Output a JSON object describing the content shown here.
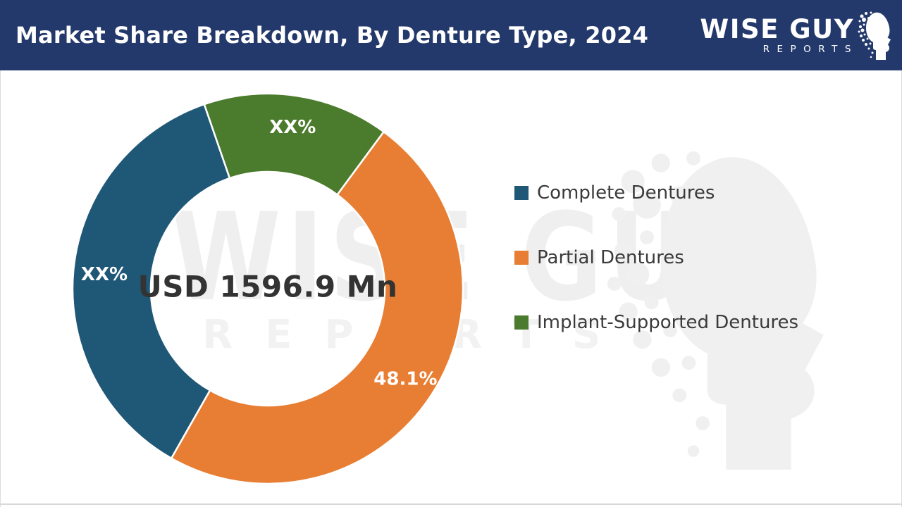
{
  "header": {
    "title": "Market Share Breakdown, By Denture Type, 2024",
    "logo": {
      "line1": "WISE GUY",
      "line2": "REPORTS"
    }
  },
  "watermark": {
    "line1": "WISE GUY",
    "line2": "REPORTS"
  },
  "chart_data": {
    "type": "pie",
    "subtype": "donut",
    "title": "Market Share Breakdown, By Denture Type, 2024",
    "center_label": "USD 1596.9 Mn",
    "legend_position": "right",
    "start_angle_deg": 109,
    "direction": "counterclockwise",
    "inner_radius_ratio": 0.6,
    "segments": [
      {
        "name": "Complete Dentures",
        "data_label": "XX%",
        "pct_estimated": 36.5,
        "color": "#1F5777",
        "label_color": "#ffffff"
      },
      {
        "name": "Partial Dentures",
        "data_label": "48.1%",
        "pct_estimated": 48.1,
        "color": "#E87E33",
        "label_color": "#ffffff"
      },
      {
        "name": "Implant-Supported Dentures",
        "data_label": "XX%",
        "pct_estimated": 15.4,
        "color": "#4B7B2C",
        "label_color": "#ffffff"
      }
    ]
  },
  "colors": {
    "header_background": "#24396B",
    "title_text": "#ffffff",
    "center_text": "#333333",
    "legend_text": "#3a3a3a",
    "watermark": "#efefef",
    "border_line": "#d8d8d8"
  }
}
